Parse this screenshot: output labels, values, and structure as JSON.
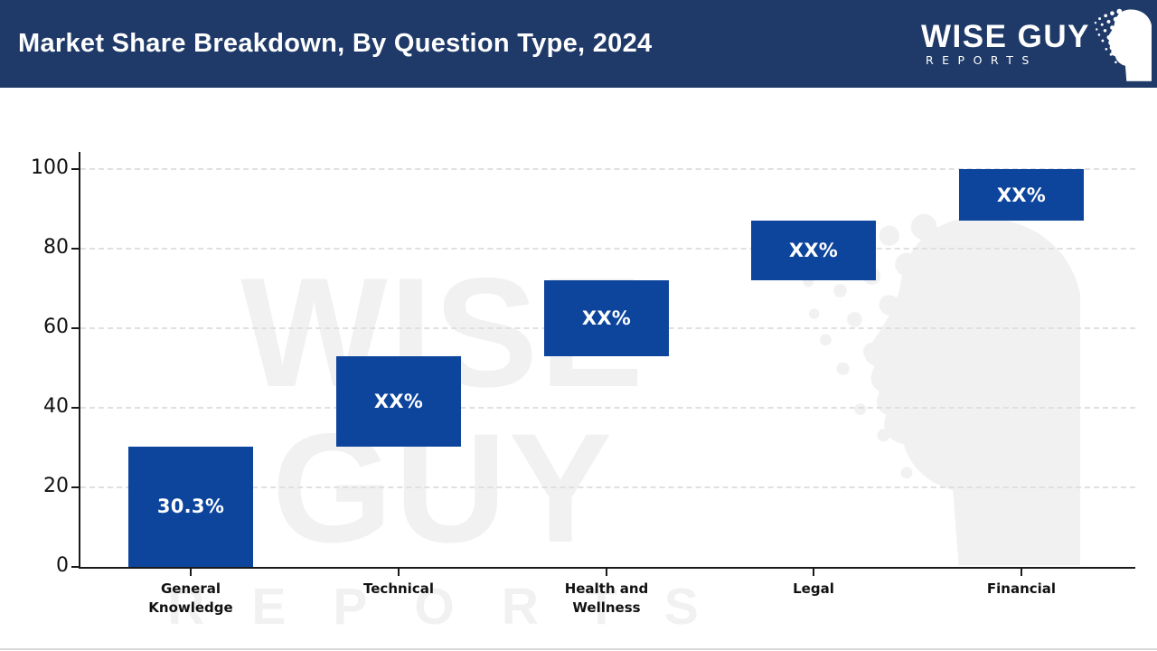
{
  "header": {
    "title": "Market Share Breakdown, By Question Type, 2024",
    "bg_color": "#1f3a68",
    "logo": {
      "line1": "WISE GUY",
      "line2": "REPORTS"
    }
  },
  "watermark": {
    "line1": "WISE GUY",
    "line2": "REPORTS"
  },
  "colors": {
    "header_bg": "#1f3a68",
    "bar": "#0d459c",
    "axis": "#1a1a1a",
    "grid": "#e0e0e0",
    "watermark": "#f1f1f1",
    "bar_label_text": "#ffffff"
  },
  "chart_data": {
    "type": "bar",
    "subtype": "waterfall",
    "title": "Market Share Breakdown, By Question Type, 2024",
    "categories": [
      "General Knowledge",
      "Technical",
      "Health and Wellness",
      "Legal",
      "Financial"
    ],
    "category_labels": [
      "General Knowledge",
      "Technical",
      "Health and\nWellness",
      "Legal",
      "Financial"
    ],
    "segments": [
      {
        "category": "General Knowledge",
        "start": 0,
        "end": 30.3,
        "value": 30.3,
        "label": "30.3%"
      },
      {
        "category": "Technical",
        "start": 30.3,
        "end": 53,
        "value": 22.7,
        "label": "XX%"
      },
      {
        "category": "Health and Wellness",
        "start": 53,
        "end": 72,
        "value": 19,
        "label": "XX%"
      },
      {
        "category": "Legal",
        "start": 72,
        "end": 87,
        "value": 15,
        "label": "XX%"
      },
      {
        "category": "Financial",
        "start": 87,
        "end": 100,
        "value": 13,
        "label": "XX%"
      }
    ],
    "yticks": [
      0,
      20,
      40,
      60,
      80,
      100
    ],
    "ytick_labels": [
      "0",
      "20",
      "40",
      "60",
      "80",
      "100"
    ],
    "ylim": [
      0,
      104
    ],
    "xlabel": "",
    "ylabel": "",
    "grid": "horizontal-dashed",
    "legend": "none",
    "bar_color": "#0d459c"
  }
}
